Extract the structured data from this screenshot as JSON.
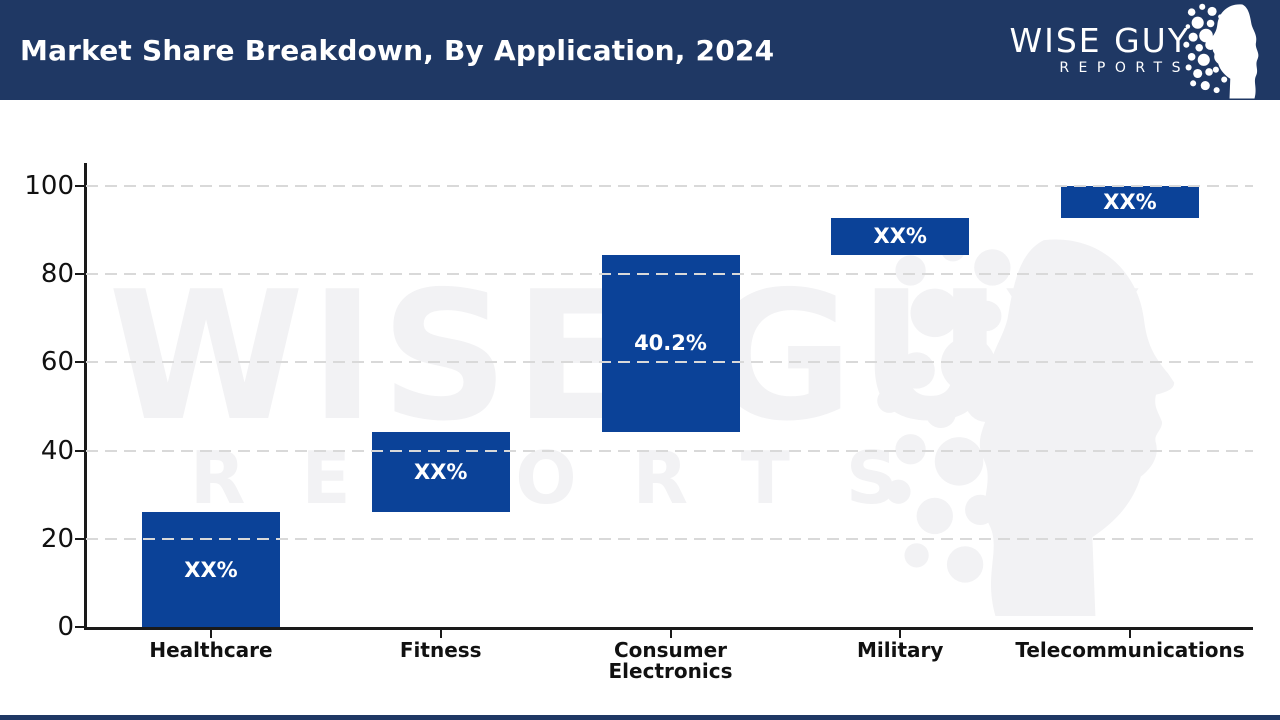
{
  "header": {
    "title": "Market Share Breakdown, By Application, 2024",
    "logo": {
      "name": "WISE GUY",
      "sub": "REPORTS"
    }
  },
  "watermark": {
    "line1": "WISE GUY",
    "line2": "REPORTS"
  },
  "colors": {
    "header_bg": "#1f3864",
    "bar": "#0b4298",
    "bar_label": "#ffffff",
    "grid": "#d9d9d9",
    "axis": "#1a1a1a",
    "watermark": "#f2f2f4"
  },
  "chart_data": {
    "type": "bar",
    "subtype": "waterfall",
    "title": "Market Share Breakdown, By Application, 2024",
    "categories": [
      "Healthcare",
      "Fitness",
      "Consumer\nElectronics",
      "Military",
      "Telecommunications"
    ],
    "segments": [
      {
        "category": "Healthcare",
        "start": 0,
        "end": 26.0,
        "value_label": "XX%"
      },
      {
        "category": "Fitness",
        "start": 26.0,
        "end": 44.2,
        "value_label": "XX%"
      },
      {
        "category": "Consumer Electronics",
        "start": 44.2,
        "end": 84.4,
        "value_label": "40.2%"
      },
      {
        "category": "Military",
        "start": 84.4,
        "end": 92.7,
        "value_label": "XX%"
      },
      {
        "category": "Telecommunications",
        "start": 92.7,
        "end": 100.0,
        "value_label": "XX%"
      }
    ],
    "yticks": [
      0,
      20,
      40,
      60,
      80,
      100
    ],
    "ylim": [
      0,
      105
    ],
    "xlabel": "",
    "ylabel": "",
    "grid": "dashed-horizontal",
    "legend": "none",
    "bar_label_of_consumer_electronics": "40.2%"
  }
}
